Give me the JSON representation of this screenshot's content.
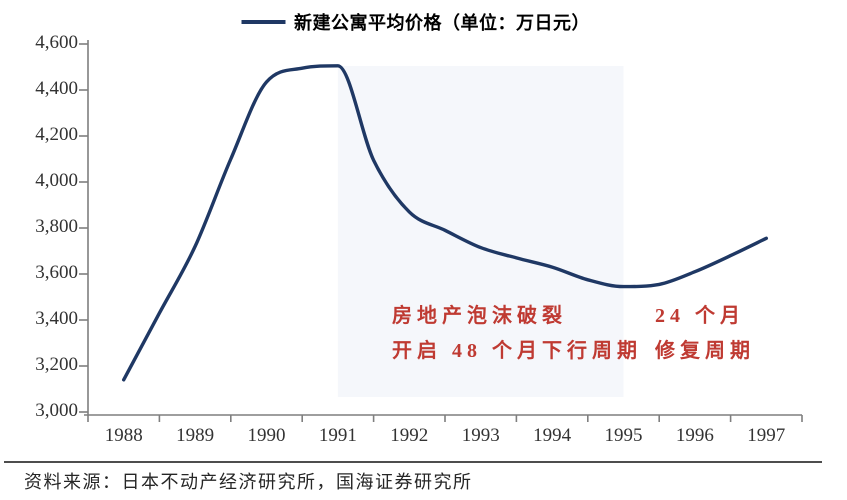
{
  "legend": {
    "label": "新建公寓平均价格（单位：万日元）"
  },
  "annotations": {
    "downturn_line1": "房地产泡沫破裂",
    "downturn_line2": "开启 48 个月下行周期",
    "recovery_line1": "24 个月",
    "recovery_line2": "修复周期"
  },
  "source": "资料来源：日本不动产经济研究所，国海证券研究所",
  "colors": {
    "line": "#1f3864",
    "annotation_red": "#bf3a32",
    "highlight_band": "#f5f7fb",
    "axis": "#7f7f7f",
    "tick_text": "#333333",
    "source_text": "#262626"
  },
  "chart_data": {
    "type": "line",
    "title": "新建公寓平均价格（单位：万日元）",
    "legend_position": "top-center",
    "grid": false,
    "x_tick_labels": [
      "1988",
      "1989",
      "1990",
      "1991",
      "1992",
      "1993",
      "1994",
      "1995",
      "1996",
      "1997"
    ],
    "y_tick_labels": [
      "4,600",
      "4,400",
      "4,200",
      "4,000",
      "3,800",
      "3,600",
      "3,400",
      "3,200",
      "3,000"
    ],
    "ylim": [
      3000,
      4600
    ],
    "series": [
      {
        "name": "新建公寓平均价格",
        "x": [
          1988,
          1988.5,
          1989,
          1989.5,
          1990,
          1990.5,
          1991,
          1991.5,
          1992,
          1992.5,
          1993,
          1993.5,
          1994,
          1994.5,
          1995,
          1995.5,
          1996,
          1996.5,
          1997
        ],
        "values": [
          3140,
          3430,
          3720,
          4100,
          4435,
          4495,
          4505,
          4095,
          3870,
          3790,
          3715,
          3670,
          3630,
          3575,
          3545,
          3555,
          3610,
          3680,
          3755
        ]
      }
    ],
    "annual_values": {
      "1988": 3140,
      "1989": 3720,
      "1990": 4435,
      "1991": 4505,
      "1992": 3870,
      "1993": 3715,
      "1994": 3630,
      "1995": 3545,
      "1996": 3610,
      "1997": 3755
    },
    "highlight_band": {
      "from_year": 1991,
      "to_year": 1995,
      "label": "房地产泡沫破裂 开启 48 个月下行周期"
    },
    "recovery_span": {
      "from_year": 1995,
      "to_year": 1997,
      "label": "24 个月修复周期"
    }
  }
}
